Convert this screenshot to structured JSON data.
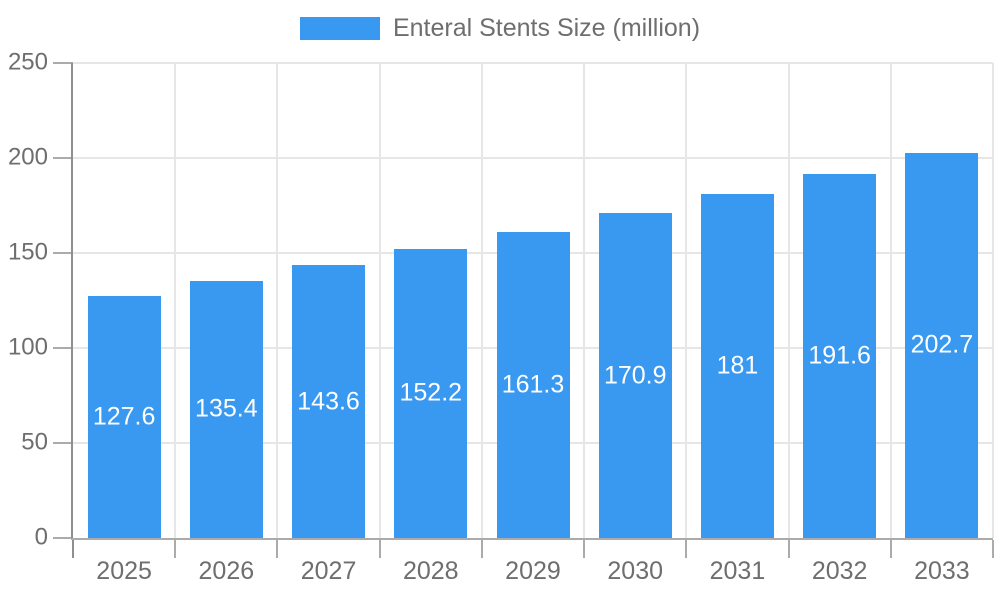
{
  "chart_data": {
    "type": "bar",
    "title": "Enteral Stents Size (million)",
    "legend": {
      "position": "top",
      "label": "Enteral Stents Size (million)"
    },
    "categories": [
      "2025",
      "2026",
      "2027",
      "2028",
      "2029",
      "2030",
      "2031",
      "2032",
      "2033"
    ],
    "series": [
      {
        "name": "Enteral Stents Size (million)",
        "values": [
          127.6,
          135.4,
          143.6,
          152.2,
          161.3,
          170.9,
          181,
          191.6,
          202.7
        ],
        "value_labels": [
          "127.6",
          "135.4",
          "143.6",
          "152.2",
          "161.3",
          "170.9",
          "181",
          "191.6",
          "202.7"
        ]
      }
    ],
    "xlabel": "",
    "ylabel": "",
    "ylim": [
      0,
      250
    ],
    "yticks": [
      0,
      50,
      100,
      150,
      200,
      250
    ],
    "grid": true,
    "colors": {
      "bar": "#3998F0",
      "grid": "#E6E6E6",
      "x_axis_line": "#ABABAB",
      "y_axis_line": "#8F8F8F",
      "tick": "#ABABAB",
      "tick_label": "#6E6E6E",
      "value_label": "#FFFFFF",
      "legend_text": "#6E6E6E",
      "background": "#FFFFFF"
    }
  }
}
